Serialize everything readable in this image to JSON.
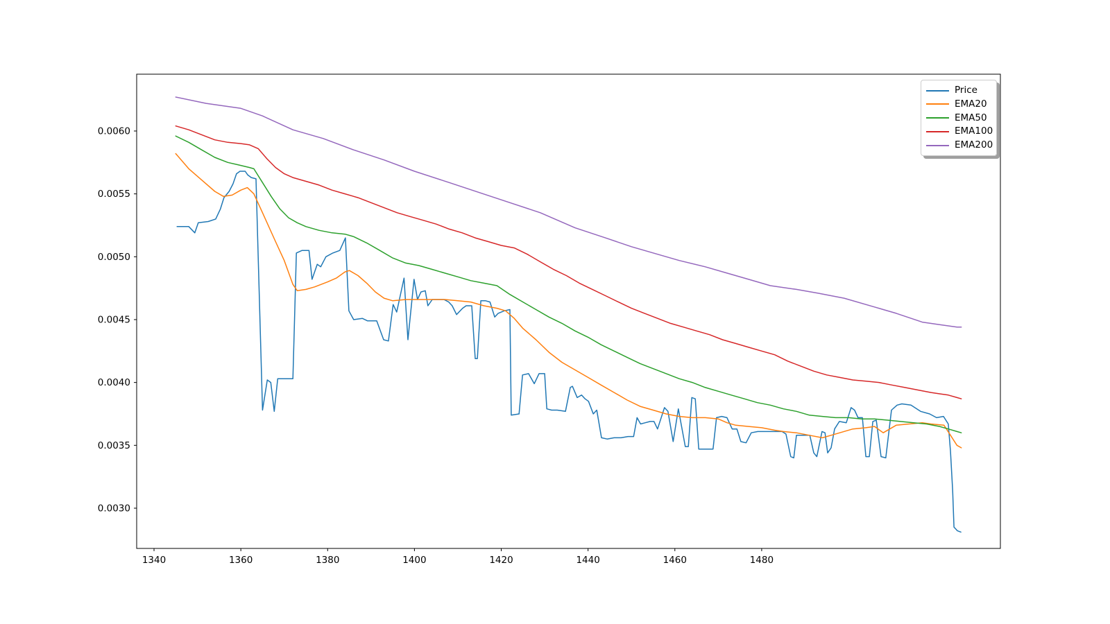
{
  "chart_data": {
    "type": "line",
    "title": "",
    "xlabel": "",
    "ylabel": "",
    "grid": false,
    "xlim": [
      1336,
      1535
    ],
    "ylim": [
      0.00268,
      0.006452
    ],
    "x_ticks": [
      1340,
      1360,
      1380,
      1400,
      1420,
      1440,
      1460,
      1480
    ],
    "y_ticks": [
      {
        "value": 0.003,
        "label": "0.0030"
      },
      {
        "value": 0.0035,
        "label": "0.0035"
      },
      {
        "value": 0.004,
        "label": "0.0040"
      },
      {
        "value": 0.0045,
        "label": "0.0045"
      },
      {
        "value": 0.005,
        "label": "0.0050"
      },
      {
        "value": 0.0055,
        "label": "0.0055"
      },
      {
        "value": 0.006,
        "label": "0.0060"
      }
    ],
    "legend": {
      "position": "upper right",
      "entries": [
        {
          "label": "Price",
          "color": "#1f77b4"
        },
        {
          "label": "EMA20",
          "color": "#ff7f0e"
        },
        {
          "label": "EMA50",
          "color": "#2ca02c"
        },
        {
          "label": "EMA100",
          "color": "#d62728"
        },
        {
          "label": "EMA200",
          "color": "#9467bd"
        }
      ]
    },
    "series": [
      {
        "name": "Price",
        "color": "#1f77b4",
        "x": [
          1345.3,
          1347,
          1348,
          1349.4,
          1350.2,
          1352.5,
          1354.2,
          1355.3,
          1356.1,
          1357.3,
          1358.2,
          1359,
          1359.8,
          1361,
          1361.6,
          1362.4,
          1363.5,
          1365,
          1366.1,
          1366.9,
          1367.7,
          1368.5,
          1372,
          1372.8,
          1374.1,
          1375.7,
          1376.4,
          1377.6,
          1378.4,
          1379.6,
          1381.2,
          1382.8,
          1384.1,
          1384.9,
          1386,
          1388,
          1389.2,
          1391.3,
          1392.9,
          1394,
          1395.1,
          1395.9,
          1397.6,
          1398.5,
          1399.9,
          1400.7,
          1401.5,
          1402.5,
          1403.1,
          1404.1,
          1405.5,
          1406.8,
          1407.9,
          1408.7,
          1409.7,
          1411.1,
          1411.9,
          1413.2,
          1414,
          1414.5,
          1415.3,
          1416.4,
          1417.4,
          1418.5,
          1419.3,
          1420.7,
          1422,
          1422.3,
          1424.1,
          1424.9,
          1426.3,
          1427.6,
          1428.7,
          1430,
          1430.5,
          1431.6,
          1432.9,
          1434.8,
          1435.9,
          1436.4,
          1437.5,
          1438.5,
          1439.3,
          1440.1,
          1441.2,
          1442,
          1443.1,
          1444.4,
          1446,
          1447.6,
          1449.2,
          1450.5,
          1451.3,
          1452.1,
          1453.2,
          1454.3,
          1455.2,
          1456,
          1457.6,
          1458.4,
          1459.6,
          1460.8,
          1462.4,
          1463.1,
          1463.9,
          1464.7,
          1465.5,
          1467.2,
          1468.8,
          1469.6,
          1470.8,
          1472,
          1473.2,
          1474.3,
          1475.2,
          1476.4,
          1477.6,
          1479.1,
          1480.4,
          1482,
          1483.6,
          1484.7,
          1485.6,
          1486.7,
          1487.4,
          1488,
          1489.1,
          1491.1,
          1492,
          1492.7,
          1493.9,
          1494.6,
          1495.2,
          1496,
          1496.8,
          1497.9,
          1499.5,
          1500.6,
          1501.4,
          1502.2,
          1503.2,
          1504,
          1504.8,
          1505.6,
          1506.4,
          1507.5,
          1508.6,
          1509.9,
          1511.2,
          1512.3,
          1514.4,
          1516.6,
          1518.7,
          1520.3,
          1521.9,
          1523,
          1523.5,
          1524,
          1524.3,
          1525.1,
          1525.9
        ],
        "y": [
          0.00524,
          0.00524,
          0.00524,
          0.00519,
          0.00527,
          0.00528,
          0.0053,
          0.00538,
          0.00547,
          0.00552,
          0.00558,
          0.00566,
          0.00568,
          0.00568,
          0.00565,
          0.00563,
          0.00562,
          0.00378,
          0.00402,
          0.004,
          0.00377,
          0.00403,
          0.00403,
          0.00503,
          0.00505,
          0.00505,
          0.00482,
          0.00494,
          0.00492,
          0.005,
          0.00503,
          0.00505,
          0.00515,
          0.00457,
          0.0045,
          0.00451,
          0.00449,
          0.00449,
          0.00434,
          0.00433,
          0.00462,
          0.00456,
          0.00483,
          0.00434,
          0.00482,
          0.00466,
          0.00472,
          0.00473,
          0.00461,
          0.00466,
          0.00466,
          0.00466,
          0.00464,
          0.00461,
          0.00454,
          0.00459,
          0.00461,
          0.00461,
          0.00419,
          0.00419,
          0.00465,
          0.00465,
          0.00464,
          0.00452,
          0.00455,
          0.00457,
          0.00458,
          0.00374,
          0.00375,
          0.00406,
          0.00407,
          0.00399,
          0.00407,
          0.00407,
          0.00379,
          0.00378,
          0.00378,
          0.00377,
          0.00396,
          0.00397,
          0.00388,
          0.0039,
          0.00387,
          0.00385,
          0.00375,
          0.00378,
          0.00356,
          0.00355,
          0.00356,
          0.00356,
          0.00357,
          0.00357,
          0.00372,
          0.00367,
          0.00368,
          0.00369,
          0.00369,
          0.00363,
          0.0038,
          0.00377,
          0.00353,
          0.00379,
          0.00349,
          0.00349,
          0.00388,
          0.00387,
          0.00347,
          0.00347,
          0.00347,
          0.00372,
          0.00373,
          0.00372,
          0.00363,
          0.00363,
          0.00353,
          0.00352,
          0.0036,
          0.00361,
          0.00361,
          0.00361,
          0.00361,
          0.00361,
          0.00359,
          0.00341,
          0.0034,
          0.00358,
          0.00358,
          0.00358,
          0.00344,
          0.00341,
          0.00361,
          0.0036,
          0.00344,
          0.00348,
          0.00363,
          0.00369,
          0.00368,
          0.0038,
          0.00378,
          0.00372,
          0.00372,
          0.00341,
          0.00341,
          0.00369,
          0.0037,
          0.00341,
          0.0034,
          0.00378,
          0.00382,
          0.00383,
          0.00382,
          0.00377,
          0.00375,
          0.00372,
          0.00373,
          0.00367,
          0.00345,
          0.00314,
          0.00285,
          0.00282,
          0.00281
        ]
      },
      {
        "name": "EMA20",
        "color": "#ff7f0e",
        "x": [
          1345,
          1348,
          1351,
          1354,
          1356,
          1358,
          1360,
          1361.5,
          1363,
          1365,
          1368,
          1370,
          1372,
          1373,
          1375,
          1377,
          1380,
          1382,
          1384,
          1385,
          1387,
          1389,
          1391,
          1393,
          1395,
          1398,
          1401,
          1404,
          1407,
          1410,
          1413,
          1416,
          1419,
          1421,
          1423,
          1425,
          1428,
          1431,
          1434,
          1437,
          1440,
          1443,
          1446,
          1449,
          1452,
          1455,
          1458,
          1461,
          1464,
          1467,
          1470,
          1472,
          1474,
          1477,
          1480,
          1483,
          1485,
          1488,
          1491,
          1494,
          1496,
          1498,
          1501,
          1504,
          1506,
          1508,
          1511,
          1514,
          1517,
          1519,
          1522,
          1523.5,
          1525,
          1526
        ],
        "y": [
          0.00582,
          0.0057,
          0.00561,
          0.00552,
          0.00548,
          0.00549,
          0.00553,
          0.00555,
          0.0055,
          0.00535,
          0.00512,
          0.00497,
          0.00478,
          0.00473,
          0.00474,
          0.00476,
          0.0048,
          0.00483,
          0.00488,
          0.00489,
          0.00485,
          0.00479,
          0.00472,
          0.00467,
          0.00465,
          0.00466,
          0.00466,
          0.00466,
          0.00466,
          0.00465,
          0.00464,
          0.00461,
          0.00459,
          0.00457,
          0.00451,
          0.00443,
          0.00434,
          0.00424,
          0.00416,
          0.0041,
          0.00404,
          0.00398,
          0.00392,
          0.00386,
          0.00381,
          0.00378,
          0.00375,
          0.00373,
          0.00372,
          0.00372,
          0.00371,
          0.00368,
          0.00366,
          0.00365,
          0.00364,
          0.00362,
          0.00361,
          0.0036,
          0.00358,
          0.00356,
          0.00358,
          0.0036,
          0.00363,
          0.00364,
          0.00365,
          0.0036,
          0.00366,
          0.00367,
          0.00368,
          0.00367,
          0.00366,
          0.00358,
          0.0035,
          0.00348
        ]
      },
      {
        "name": "EMA50",
        "color": "#2ca02c",
        "x": [
          1345,
          1348,
          1351,
          1354,
          1357,
          1359.5,
          1362,
          1363,
          1365,
          1367,
          1369,
          1371,
          1373,
          1375,
          1378,
          1381,
          1384,
          1386,
          1389,
          1392,
          1395,
          1398,
          1401,
          1404,
          1407,
          1410,
          1413,
          1416,
          1419,
          1422,
          1425,
          1428,
          1431,
          1434,
          1437,
          1440,
          1443,
          1446,
          1449,
          1452,
          1455,
          1458,
          1461,
          1464,
          1467,
          1470,
          1473,
          1476,
          1479,
          1482,
          1485,
          1488,
          1491,
          1494,
          1497,
          1500,
          1503,
          1506,
          1509,
          1512,
          1515,
          1518,
          1521,
          1523,
          1525,
          1526
        ],
        "y": [
          0.00596,
          0.00591,
          0.00585,
          0.00579,
          0.00575,
          0.00573,
          0.00571,
          0.0057,
          0.00559,
          0.00548,
          0.00538,
          0.00531,
          0.00527,
          0.00524,
          0.00521,
          0.00519,
          0.00518,
          0.00516,
          0.00511,
          0.00505,
          0.00499,
          0.00495,
          0.00493,
          0.0049,
          0.00487,
          0.00484,
          0.00481,
          0.00479,
          0.00477,
          0.0047,
          0.00464,
          0.00458,
          0.00452,
          0.00447,
          0.00441,
          0.00436,
          0.0043,
          0.00425,
          0.0042,
          0.00415,
          0.00411,
          0.00407,
          0.00403,
          0.004,
          0.00396,
          0.00393,
          0.0039,
          0.00387,
          0.00384,
          0.00382,
          0.00379,
          0.00377,
          0.00374,
          0.00373,
          0.00372,
          0.00372,
          0.00371,
          0.00371,
          0.0037,
          0.00369,
          0.00368,
          0.00367,
          0.00365,
          0.00363,
          0.00361,
          0.0036
        ]
      },
      {
        "name": "EMA100",
        "color": "#d62728",
        "x": [
          1345,
          1348,
          1351,
          1354,
          1357,
          1360,
          1362,
          1364,
          1366,
          1368,
          1370,
          1372,
          1375,
          1378,
          1381,
          1384,
          1387,
          1390,
          1393,
          1396,
          1399,
          1402,
          1405,
          1408,
          1411,
          1414,
          1417,
          1420,
          1423,
          1426,
          1429,
          1432,
          1435,
          1438,
          1441,
          1444,
          1447,
          1450,
          1453,
          1456,
          1459,
          1462,
          1465,
          1468,
          1471,
          1474,
          1477,
          1480,
          1483,
          1486,
          1489,
          1492,
          1495,
          1498,
          1501,
          1504,
          1507,
          1510,
          1513,
          1516,
          1519,
          1521,
          1523,
          1525,
          1526
        ],
        "y": [
          0.00604,
          0.00601,
          0.00597,
          0.00593,
          0.00591,
          0.0059,
          0.00589,
          0.00586,
          0.00578,
          0.00571,
          0.00566,
          0.00563,
          0.0056,
          0.00557,
          0.00553,
          0.0055,
          0.00547,
          0.00543,
          0.00539,
          0.00535,
          0.00532,
          0.00529,
          0.00526,
          0.00522,
          0.00519,
          0.00515,
          0.00512,
          0.00509,
          0.00507,
          0.00502,
          0.00496,
          0.0049,
          0.00485,
          0.00479,
          0.00474,
          0.00469,
          0.00464,
          0.00459,
          0.00455,
          0.00451,
          0.00447,
          0.00444,
          0.00441,
          0.00438,
          0.00434,
          0.00431,
          0.00428,
          0.00425,
          0.00422,
          0.00417,
          0.00413,
          0.00409,
          0.00406,
          0.00404,
          0.00402,
          0.00401,
          0.004,
          0.00398,
          0.00396,
          0.00394,
          0.00392,
          0.00391,
          0.0039,
          0.00388,
          0.00387
        ]
      },
      {
        "name": "EMA200",
        "color": "#9467bd",
        "x": [
          1345,
          1352,
          1360,
          1365,
          1372,
          1379,
          1386,
          1393,
          1400,
          1408,
          1415,
          1422,
          1429,
          1437,
          1444,
          1450,
          1456,
          1461,
          1467,
          1472,
          1477,
          1482,
          1488,
          1493,
          1499,
          1506,
          1511,
          1517,
          1521,
          1525,
          1526
        ],
        "y": [
          0.00627,
          0.00622,
          0.00618,
          0.00612,
          0.00601,
          0.00594,
          0.00585,
          0.00577,
          0.00568,
          0.00559,
          0.00551,
          0.00543,
          0.00535,
          0.00523,
          0.00515,
          0.00508,
          0.00502,
          0.00497,
          0.00492,
          0.00487,
          0.00482,
          0.00477,
          0.00474,
          0.00471,
          0.00467,
          0.0046,
          0.00455,
          0.00448,
          0.00446,
          0.00444,
          0.00444
        ]
      }
    ]
  }
}
